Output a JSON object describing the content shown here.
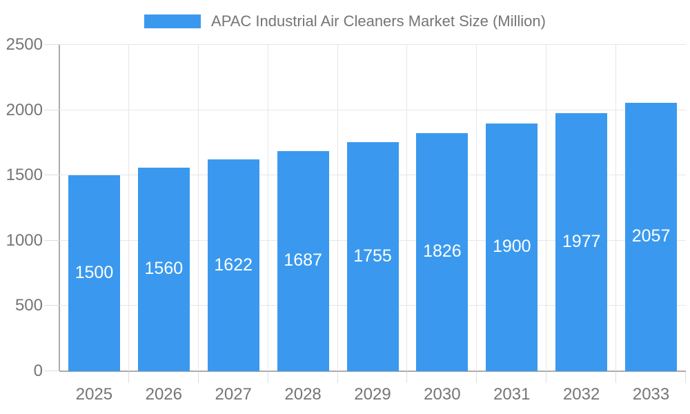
{
  "legend": {
    "label": "APAC Industrial Air Cleaners Market Size (Million)"
  },
  "chart_data": {
    "type": "bar",
    "title": "APAC Industrial Air Cleaners Market Size (Million)",
    "categories": [
      "2025",
      "2026",
      "2027",
      "2028",
      "2029",
      "2030",
      "2031",
      "2032",
      "2033"
    ],
    "values": [
      1500,
      1560,
      1622,
      1687,
      1755,
      1826,
      1900,
      1977,
      2057
    ],
    "xlabel": "",
    "ylabel": "",
    "ylim": [
      0,
      2500
    ],
    "ytick_step": 500,
    "ytick_labels": [
      "0",
      "500",
      "1000",
      "1500",
      "2000",
      "2500"
    ],
    "grid": true,
    "legend_position": "top",
    "bar_value_labels": "inside-center"
  },
  "colors": {
    "bar": "#3a99ee",
    "text": "#757575",
    "bar_label": "#ffffff",
    "grid": "#e6e6e6",
    "tick": "#dddddd",
    "axis": "#aaaaaa"
  }
}
